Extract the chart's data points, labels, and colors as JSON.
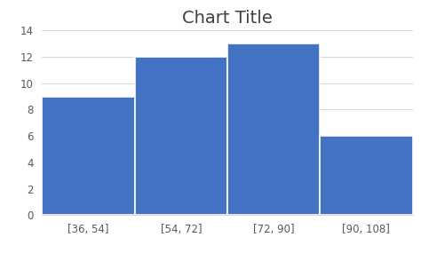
{
  "title": "Chart Title",
  "categories": [
    "[36, 54]",
    "[54, 72]",
    "[72, 90]",
    "[90, 108]"
  ],
  "values": [
    9,
    12,
    13,
    6
  ],
  "bar_color": "#4472C4",
  "bar_edge_color": "white",
  "bar_edge_width": 1.2,
  "ylim": [
    0,
    14
  ],
  "yticks": [
    0,
    2,
    4,
    6,
    8,
    10,
    12,
    14
  ],
  "title_fontsize": 14,
  "tick_fontsize": 8.5,
  "background_color": "#ffffff",
  "grid_color": "#d9d9d9",
  "title_color": "#404040",
  "tick_color": "#595959"
}
